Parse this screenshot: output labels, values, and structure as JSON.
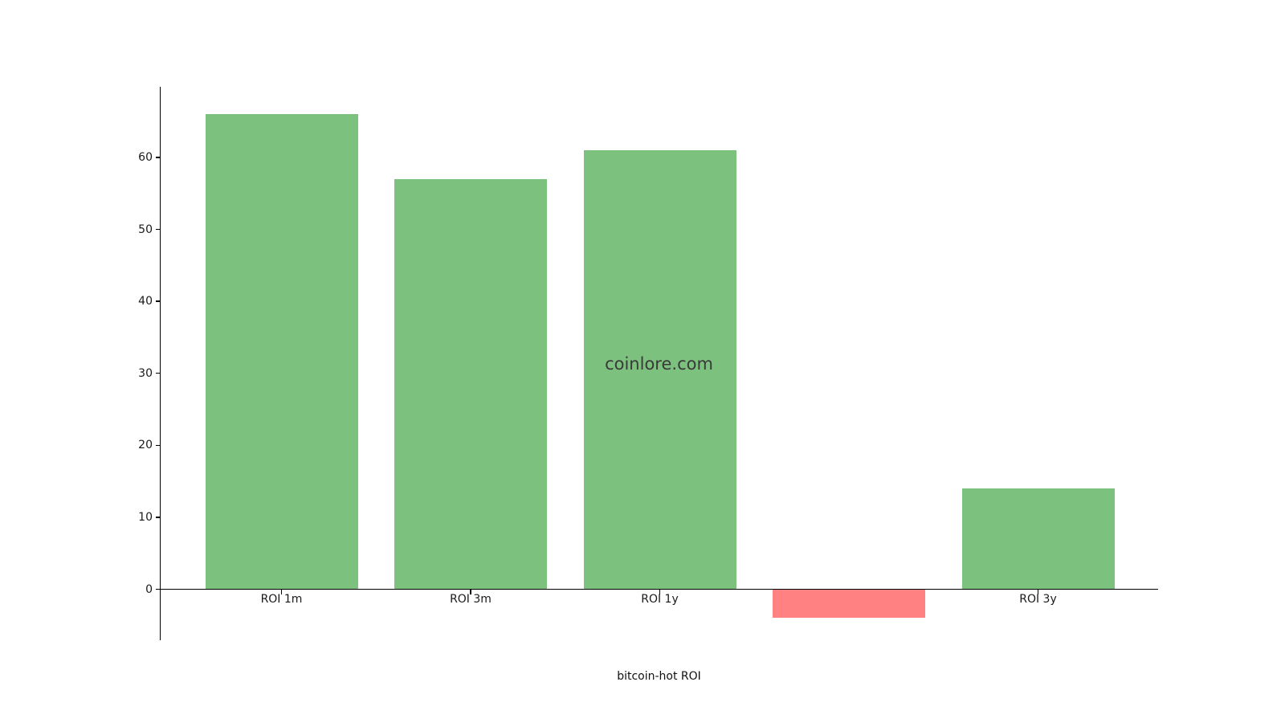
{
  "watermark": {
    "text": "coinlore.com",
    "color": "#3a3a3a"
  },
  "chart_data": {
    "type": "bar",
    "title": "bitcoin-hot ROI",
    "categories": [
      "ROI 1m",
      "ROI 3m",
      "ROI 1y",
      "",
      "ROI 3y"
    ],
    "values": [
      66,
      57,
      61,
      -4,
      14
    ],
    "series": [
      {
        "name": "ROI",
        "values": [
          66,
          57,
          61,
          -4,
          14
        ]
      }
    ],
    "positive_color": "#7dc17e",
    "negative_color": "#ff8181",
    "axis_color": "#000000",
    "tick_label_color": "#1a1a1a",
    "xlabel": "bitcoin-hot ROI",
    "ylabel": "",
    "y_ticks": [
      0,
      10,
      20,
      30,
      40,
      50,
      60
    ],
    "ylim": [
      -7.5,
      69.5
    ],
    "grid": false,
    "legend": false,
    "note": "fourth category tick label is hidden behind the negative (red) bar"
  }
}
